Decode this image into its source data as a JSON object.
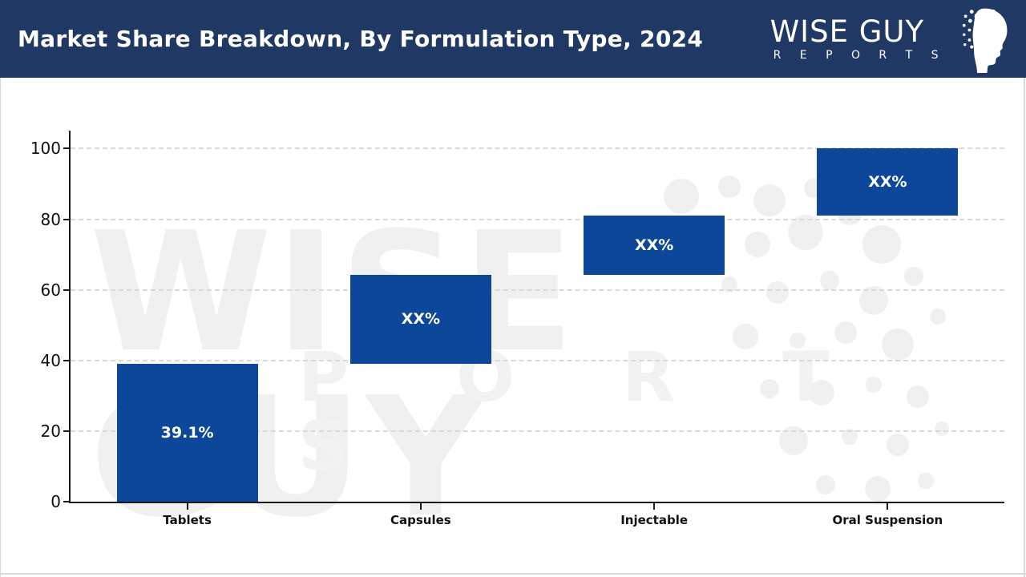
{
  "header": {
    "title": "Market Share Breakdown, By Formulation Type, 2024",
    "logo": {
      "name": "WISE GUY",
      "tagline": "R E P O R T S",
      "icon": "face-profile-dots-icon"
    }
  },
  "watermark": {
    "line1": "WISE GUY",
    "line2": "P O R T S"
  },
  "chart_data": {
    "type": "bar",
    "variant": "floating-waterfall",
    "title": "Market Share Breakdown, By Formulation Type, 2024",
    "categories": [
      "Tablets",
      "Capsules",
      "Injectable",
      "Oral Suspension"
    ],
    "segments": [
      {
        "category": "Tablets",
        "start": 0,
        "end": 39.1,
        "label": "39.1%"
      },
      {
        "category": "Capsules",
        "start": 39.1,
        "end": 64.2,
        "label": "XX%"
      },
      {
        "category": "Injectable",
        "start": 64.2,
        "end": 81.0,
        "label": "XX%"
      },
      {
        "category": "Oral Suspension",
        "start": 81.0,
        "end": 100.0,
        "label": "XX%"
      }
    ],
    "yticks": [
      0,
      20,
      40,
      60,
      80,
      100
    ],
    "ylim": [
      0,
      105
    ],
    "xlabel": "",
    "ylabel": "",
    "grid": "horizontal-dashed",
    "legend": "none",
    "colors": {
      "bar": "#0d4799",
      "bar_label": "#ffffff",
      "axis": "#1a1a1a",
      "grid": "#d9d9d9",
      "header_bg": "#1f3864",
      "header_text": "#ffffff",
      "watermark": "#f0f0f0"
    }
  }
}
